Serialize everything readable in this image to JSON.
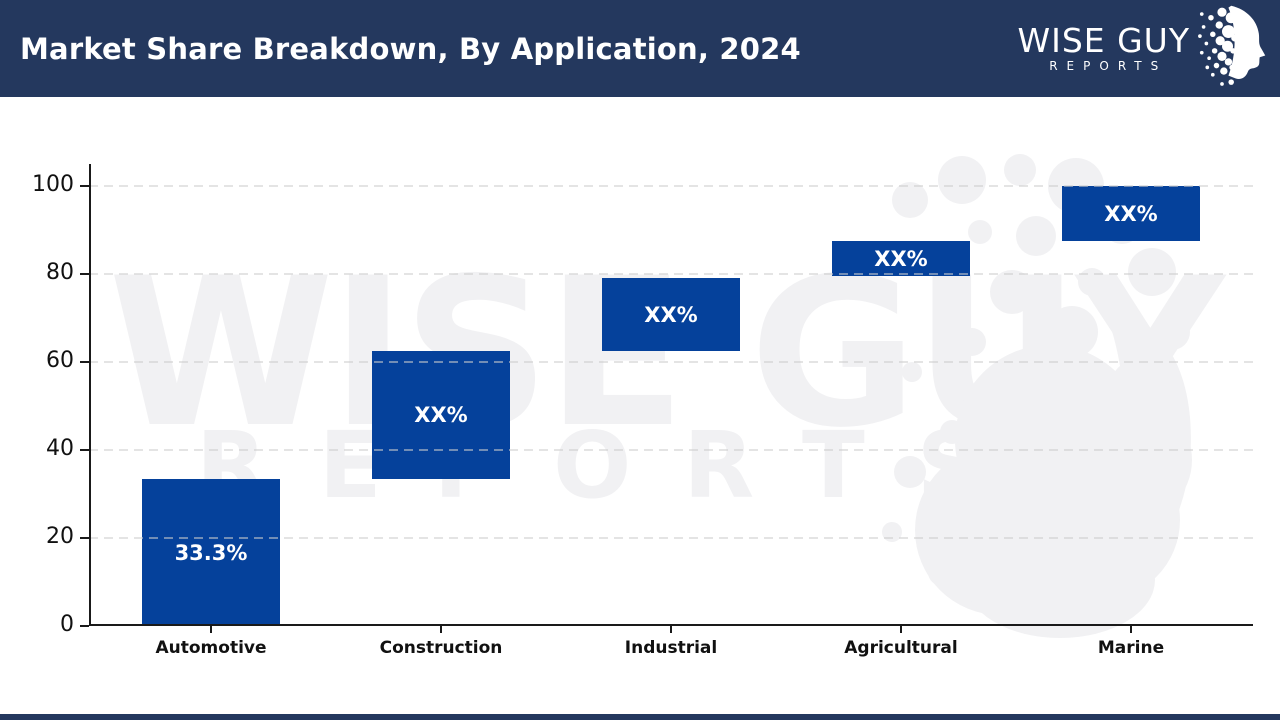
{
  "header": {
    "title": "Market Share Breakdown, By Application, 2024",
    "logo": {
      "line1": "WISE GUY",
      "line2": "REPORTS"
    }
  },
  "watermark": {
    "line1": "WISE GUY",
    "line2": "REPORTS"
  },
  "colors": {
    "header_bg": "#24385E",
    "bar": "#05419B",
    "watermark": "#f1f1f3",
    "grid": "#e6e6e6",
    "axis": "#1a1a1a",
    "bar_label_text": "#ffffff",
    "title_text": "#ffffff"
  },
  "chart_data": {
    "type": "bar",
    "subtype": "waterfall",
    "title": "Market Share Breakdown, By Application, 2024",
    "xlabel": "",
    "ylabel": "",
    "ylim": [
      0,
      105
    ],
    "yticks": [
      0,
      20,
      40,
      60,
      80,
      100
    ],
    "grid": "horizontal-dashed",
    "legend": "none",
    "categories": [
      "Automotive",
      "Construction",
      "Industrial",
      "Agricultural",
      "Marine"
    ],
    "bars": [
      {
        "category": "Automotive",
        "start": 0,
        "end": 33.3,
        "label": "33.3%"
      },
      {
        "category": "Construction",
        "start": 33.3,
        "end": 62.5,
        "label": "XX%"
      },
      {
        "category": "Industrial",
        "start": 62.5,
        "end": 79.0,
        "label": "XX%"
      },
      {
        "category": "Agricultural",
        "start": 79.5,
        "end": 87.5,
        "label": "XX%"
      },
      {
        "category": "Marine",
        "start": 87.5,
        "end": 100.0,
        "label": "XX%"
      }
    ]
  }
}
